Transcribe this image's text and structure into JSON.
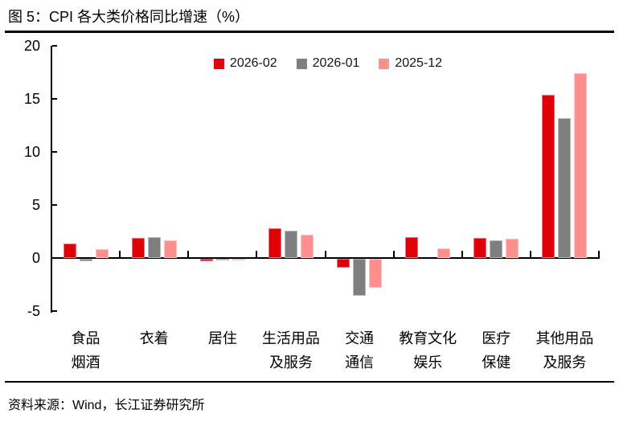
{
  "title": "图 5：CPI 各大类价格同比增速（%）",
  "source": "资料来源：Wind，长江证券研究所",
  "colors": {
    "series_red": "#e00008",
    "series_gray": "#7f7f7f",
    "series_pink": "#ff8f8f",
    "axis": "#000000"
  },
  "chart_data": {
    "type": "bar",
    "title": "图 5：CPI 各大类价格同比增速（%）",
    "categories": [
      "食品烟酒",
      "衣着",
      "居住",
      "生活用品及服务",
      "交通通信",
      "教育文化娱乐",
      "医疗保健",
      "其他用品及服务"
    ],
    "category_labels": [
      "食品\n烟酒",
      "衣着",
      "居住",
      "生活用品\n及服务",
      "交通\n通信",
      "教育文化\n娱乐",
      "医疗\n保健",
      "其他用品\n及服务"
    ],
    "series": [
      {
        "name": "2026-02",
        "color": "#e00008",
        "values": [
          1.4,
          1.9,
          -0.2,
          2.8,
          -0.8,
          2.0,
          1.9,
          15.4
        ]
      },
      {
        "name": "2026-01",
        "color": "#7f7f7f",
        "values": [
          -0.2,
          2.0,
          -0.1,
          2.6,
          -3.5,
          0.0,
          1.7,
          13.2
        ]
      },
      {
        "name": "2025-12",
        "color": "#ff8f8f",
        "values": [
          0.8,
          1.7,
          -0.1,
          2.2,
          -2.7,
          0.9,
          1.8,
          17.4
        ]
      }
    ],
    "ylim": [
      -5,
      20
    ],
    "yticks": [
      20,
      15,
      10,
      5,
      0,
      -5
    ],
    "xlabel": "",
    "ylabel": "",
    "grid": false,
    "legend_position": "top-center"
  }
}
